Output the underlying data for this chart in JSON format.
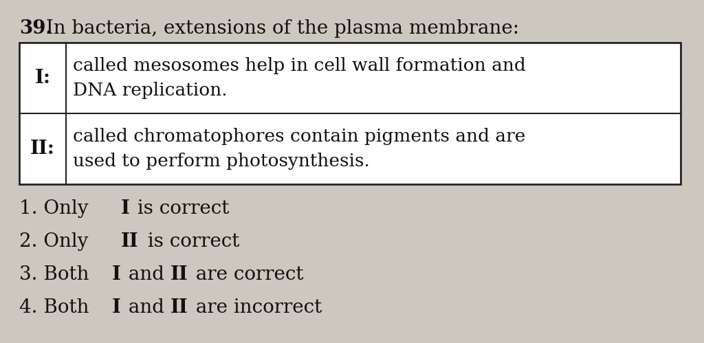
{
  "title_bold": "39.",
  "title_rest": " In bacteria, extensions of the plasma membrane:",
  "table": {
    "rows": [
      {
        "label": "I:",
        "text_line1": "called mesosomes help in cell wall formation and",
        "text_line2": "DNA replication."
      },
      {
        "label": "II:",
        "text_line1": "called chromatophores contain pigments and are",
        "text_line2": "used to perform photosynthesis."
      }
    ]
  },
  "options": [
    {
      "prefix": "1. Only ",
      "bold": "I",
      "suffix": " is correct"
    },
    {
      "prefix": "2. Only ",
      "bold": "II",
      "suffix": " is correct"
    },
    {
      "prefix": "3. Both ",
      "bold": "I",
      "suffix": " and ",
      "bold2": "II",
      "suffix2": " are correct"
    },
    {
      "prefix": "4. Both ",
      "bold": "I",
      "suffix": " and ",
      "bold2": "II",
      "suffix2": " are incorrect"
    }
  ],
  "bg_color": "#ccc8c0",
  "text_color": "#111111",
  "title_fontsize": 20,
  "table_fontsize": 19,
  "options_fontsize": 20,
  "label_fontsize": 20
}
